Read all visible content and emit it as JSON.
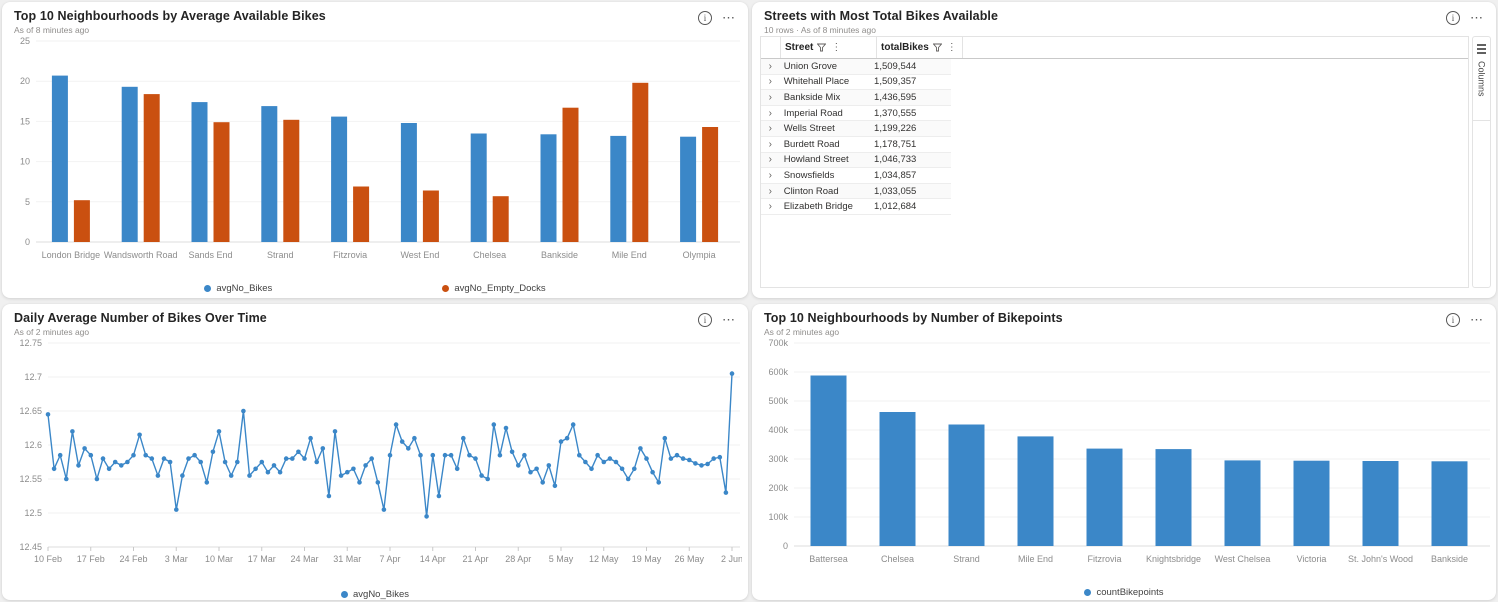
{
  "colors": {
    "blue": "#3b87c8",
    "orange": "#ca5010",
    "grid": "#f2f2f2",
    "axis": "#dcdcdc"
  },
  "panels": {
    "avg_bikes": {
      "title": "Top 10 Neighbourhoods by Average Available Bikes",
      "subtitle": "As of 8 minutes ago"
    },
    "streets_table": {
      "title": "Streets with Most Total Bikes Available",
      "subtitle": "10 rows · As of 8 minutes ago",
      "columns": [
        "Street",
        "totalBikes"
      ],
      "side_tab": "Columns",
      "rows": [
        [
          "Union Grove",
          "1,509,544"
        ],
        [
          "Whitehall Place",
          "1,509,357"
        ],
        [
          "Bankside Mix",
          "1,436,595"
        ],
        [
          "Imperial Road",
          "1,370,555"
        ],
        [
          "Wells Street",
          "1,199,226"
        ],
        [
          "Burdett Road",
          "1,178,751"
        ],
        [
          "Howland Street",
          "1,046,733"
        ],
        [
          "Snowsfields",
          "1,034,857"
        ],
        [
          "Clinton Road",
          "1,033,055"
        ],
        [
          "Elizabeth Bridge",
          "1,012,684"
        ]
      ]
    },
    "daily_avg": {
      "title": "Daily Average Number of Bikes Over Time",
      "subtitle": "As of 2 minutes ago"
    },
    "bikepoints": {
      "title": "Top 10 Neighbourhoods by Number of Bikepoints",
      "subtitle": "As of 2 minutes ago"
    }
  },
  "chart_data": [
    {
      "id": "avg_bikes_chart",
      "type": "bar",
      "title": "Top 10 Neighbourhoods by Average Available Bikes",
      "categories": [
        "London Bridge",
        "Wandsworth Road",
        "Sands End",
        "Strand",
        "Fitzrovia",
        "West End",
        "Chelsea",
        "Bankside",
        "Mile End",
        "Olympia"
      ],
      "series": [
        {
          "name": "avgNo_Bikes",
          "color": "#3b87c8",
          "values": [
            20.7,
            19.3,
            17.4,
            16.9,
            15.6,
            14.8,
            13.5,
            13.4,
            13.2,
            13.1
          ]
        },
        {
          "name": "avgNo_Empty_Docks",
          "color": "#ca5010",
          "values": [
            5.2,
            18.4,
            14.9,
            15.2,
            6.9,
            6.4,
            5.7,
            16.7,
            19.8,
            14.3
          ]
        }
      ],
      "xlabel": "",
      "ylabel": "",
      "ylim": [
        0,
        25
      ],
      "yticks": [
        0,
        5,
        10,
        15,
        20,
        25
      ],
      "grid": true,
      "legend_position": "bottom"
    },
    {
      "id": "daily_avg_chart",
      "type": "line",
      "title": "Daily Average Number of Bikes Over Time",
      "x_start": "10 Feb",
      "x_end": "2 Jun",
      "x_tick_labels": [
        "10 Feb",
        "17 Feb",
        "24 Feb",
        "3 Mar",
        "10 Mar",
        "17 Mar",
        "24 Mar",
        "31 Mar",
        "7 Apr",
        "14 Apr",
        "21 Apr",
        "28 Apr",
        "5 May",
        "12 May",
        "19 May",
        "26 May",
        "2 Jun"
      ],
      "x_tick_every": 7,
      "series": [
        {
          "name": "avgNo_Bikes",
          "color": "#3b87c8",
          "values": [
            12.645,
            12.565,
            12.585,
            12.55,
            12.62,
            12.57,
            12.595,
            12.585,
            12.55,
            12.58,
            12.565,
            12.575,
            12.57,
            12.575,
            12.585,
            12.615,
            12.585,
            12.58,
            12.555,
            12.58,
            12.575,
            12.505,
            12.555,
            12.58,
            12.585,
            12.575,
            12.545,
            12.59,
            12.62,
            12.575,
            12.555,
            12.575,
            12.65,
            12.555,
            12.565,
            12.575,
            12.56,
            12.57,
            12.56,
            12.58,
            12.58,
            12.59,
            12.58,
            12.61,
            12.575,
            12.595,
            12.525,
            12.62,
            12.555,
            12.56,
            12.565,
            12.545,
            12.57,
            12.58,
            12.545,
            12.505,
            12.585,
            12.63,
            12.605,
            12.595,
            12.61,
            12.585,
            12.495,
            12.585,
            12.525,
            12.585,
            12.585,
            12.565,
            12.61,
            12.585,
            12.58,
            12.555,
            12.55,
            12.63,
            12.585,
            12.625,
            12.59,
            12.57,
            12.585,
            12.56,
            12.565,
            12.545,
            12.57,
            12.54,
            12.605,
            12.61,
            12.63,
            12.585,
            12.575,
            12.565,
            12.585,
            12.575,
            12.58,
            12.575,
            12.565,
            12.55,
            12.565,
            12.595,
            12.58,
            12.56,
            12.545,
            12.61,
            12.58,
            12.585,
            12.58,
            12.578,
            12.573,
            12.57,
            12.572,
            12.58,
            12.582,
            12.53,
            12.705
          ]
        }
      ],
      "xlabel": "",
      "ylabel": "",
      "ylim": [
        12.45,
        12.75
      ],
      "yticks": [
        12.45,
        12.5,
        12.55,
        12.6,
        12.65,
        12.7,
        12.75
      ],
      "grid": true,
      "legend_position": "bottom"
    },
    {
      "id": "bikepoints_chart",
      "type": "bar",
      "title": "Top 10 Neighbourhoods by Number of Bikepoints",
      "categories": [
        "Battersea",
        "Chelsea",
        "Strand",
        "Mile End",
        "Fitzrovia",
        "Knightsbridge",
        "West Chelsea",
        "Victoria",
        "St. John's Wood",
        "Bankside"
      ],
      "series": [
        {
          "name": "countBikepoints",
          "color": "#3b87c8",
          "values": [
            588000,
            462000,
            419000,
            378000,
            336000,
            334000,
            295000,
            294000,
            293000,
            292000
          ]
        }
      ],
      "xlabel": "",
      "ylabel": "",
      "ylim": [
        0,
        700000
      ],
      "yticks": [
        0,
        100000,
        200000,
        300000,
        400000,
        500000,
        600000,
        700000
      ],
      "ytick_format": "k",
      "grid": true,
      "legend_position": "bottom"
    }
  ]
}
